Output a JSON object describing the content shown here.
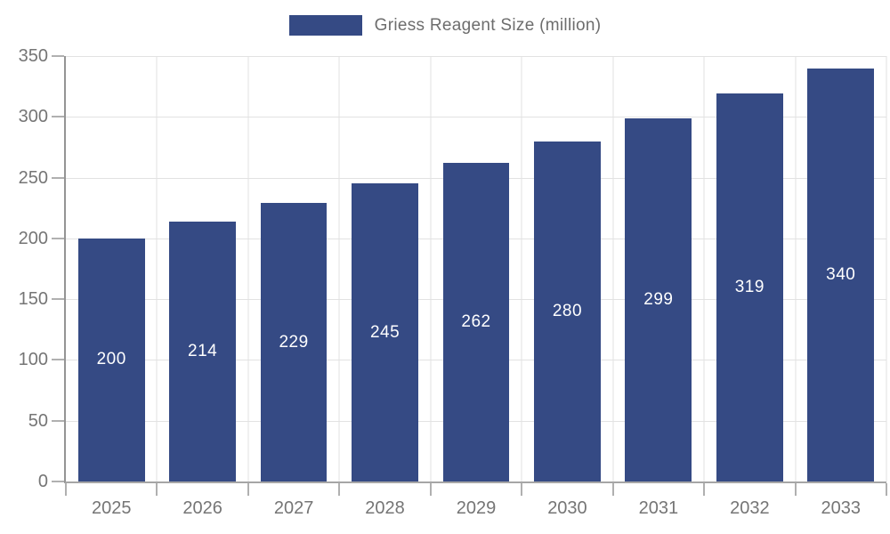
{
  "chart_data": {
    "type": "bar",
    "title": "",
    "legend": "Griess Reagent Size (million)",
    "legend_position": "top-center",
    "categories": [
      "2025",
      "2026",
      "2027",
      "2028",
      "2029",
      "2030",
      "2031",
      "2032",
      "2033"
    ],
    "values": [
      200,
      214,
      229,
      245,
      262,
      280,
      299,
      319,
      340
    ],
    "xlabel": "",
    "ylabel": "",
    "ylim": [
      0,
      350
    ],
    "yticks": [
      0,
      50,
      100,
      150,
      200,
      250,
      300,
      350
    ],
    "grid": "horizontal and vertical light gray gridlines",
    "value_labels": "white, centered vertically inside bars",
    "colors": {
      "bar": "#354a84",
      "value_label": "#ffffff",
      "legend_text": "#6d6d6d",
      "axis_text": "#757575",
      "grid": "#e2e2e2",
      "axis_line_y": "#949494",
      "axis_line_x": "#a6a6a6",
      "tick": "#b0b0b0"
    }
  }
}
